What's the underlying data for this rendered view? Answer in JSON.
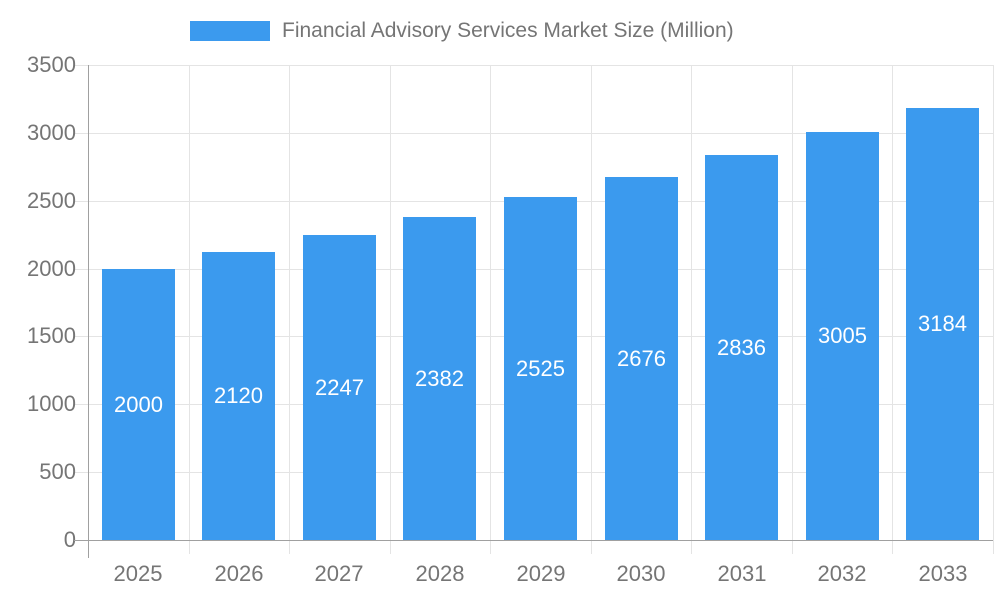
{
  "chart_data": {
    "type": "bar",
    "legend": "Financial Advisory Services Market Size (Million)",
    "legend_position": "top-center",
    "categories": [
      "2025",
      "2026",
      "2027",
      "2028",
      "2029",
      "2030",
      "2031",
      "2032",
      "2033"
    ],
    "values": [
      2000,
      2120,
      2247,
      2382,
      2525,
      2676,
      2836,
      3005,
      3184
    ],
    "title": "",
    "xlabel": "",
    "ylabel": "",
    "ylim": [
      0,
      3500
    ],
    "ytick_step": 500,
    "yticks": [
      0,
      500,
      1000,
      1500,
      2000,
      2500,
      3000,
      3500
    ],
    "grid": true,
    "bar_labels": "inside-middle",
    "colors": {
      "bar": "#3B9AEE",
      "bar_label_text": "#FFFFFF",
      "axis_text": "#757575",
      "legend_text": "#757575",
      "gridline": "#E4E4E4",
      "axis_line": "#A0A0A0",
      "background": "#FFFFFF"
    }
  }
}
